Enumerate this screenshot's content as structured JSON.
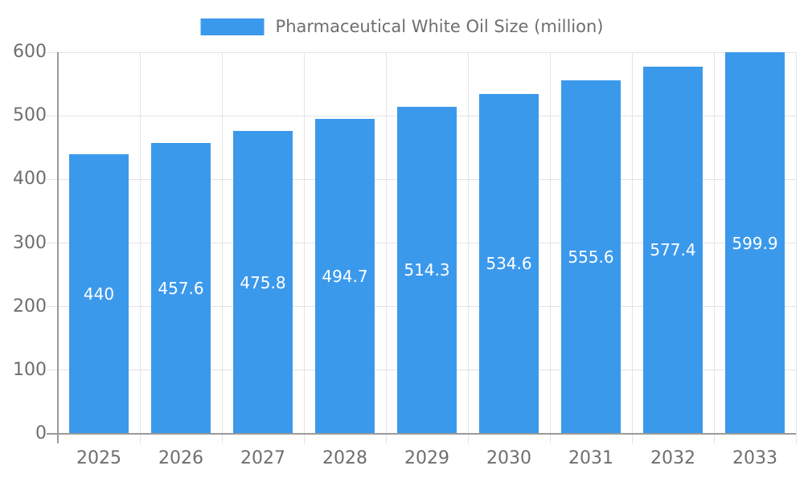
{
  "chart_data": {
    "type": "bar",
    "title": "",
    "legend": [
      "Pharmaceutical White Oil Size (million)"
    ],
    "legend_position": "top-center",
    "categories": [
      "2025",
      "2026",
      "2027",
      "2028",
      "2029",
      "2030",
      "2031",
      "2032",
      "2033"
    ],
    "series": [
      {
        "name": "Pharmaceutical White Oil Size (million)",
        "values": [
          440,
          457.6,
          475.8,
          494.7,
          514.3,
          534.6,
          555.6,
          577.4,
          599.9
        ],
        "value_labels": [
          "440",
          "457.6",
          "475.8",
          "494.7",
          "514.3",
          "534.6",
          "555.6",
          "577.4",
          "599.9"
        ]
      }
    ],
    "xlabel": "",
    "ylabel": "",
    "ylim": [
      0,
      600
    ],
    "ytick_step": 100,
    "ytick_labels": [
      "0",
      "100",
      "200",
      "300",
      "400",
      "500",
      "600"
    ],
    "grid": true,
    "value_label_position": "inside-center",
    "colors": {
      "bar": "#3b99ec",
      "grid": "#e4e4e4",
      "axis": "#9a9a9a",
      "tick_text": "#6e6e6e",
      "value_text": "#ffffff",
      "background": "#ffffff"
    }
  }
}
